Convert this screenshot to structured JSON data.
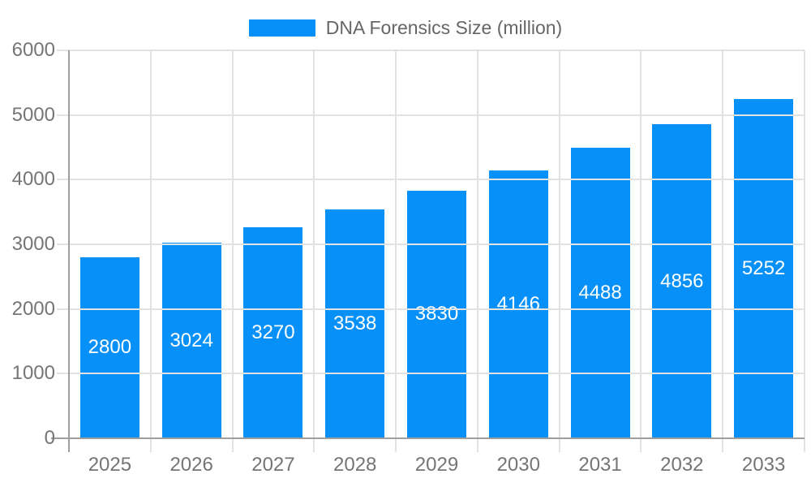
{
  "chart_data": {
    "type": "bar",
    "title": "DNA Forensics Size (million)",
    "categories": [
      "2025",
      "2026",
      "2027",
      "2028",
      "2029",
      "2030",
      "2031",
      "2032",
      "2033"
    ],
    "values": [
      2800,
      3024,
      3270,
      3538,
      3830,
      4146,
      4488,
      4856,
      5252
    ],
    "xlabel": "",
    "ylabel": "",
    "ylim": [
      0,
      6000
    ],
    "yticks": [
      0,
      1000,
      2000,
      3000,
      4000,
      5000,
      6000
    ],
    "grid": true,
    "legend_position": "top-center",
    "value_labels": "inside-center",
    "colors": {
      "bar": "#0790f8",
      "value_label": "#ffffff",
      "axis_label": "#757575",
      "legend_text": "#666666",
      "grid": "#e2e2e2",
      "axis": "#9e9e9e",
      "background": "#ffffff"
    }
  }
}
